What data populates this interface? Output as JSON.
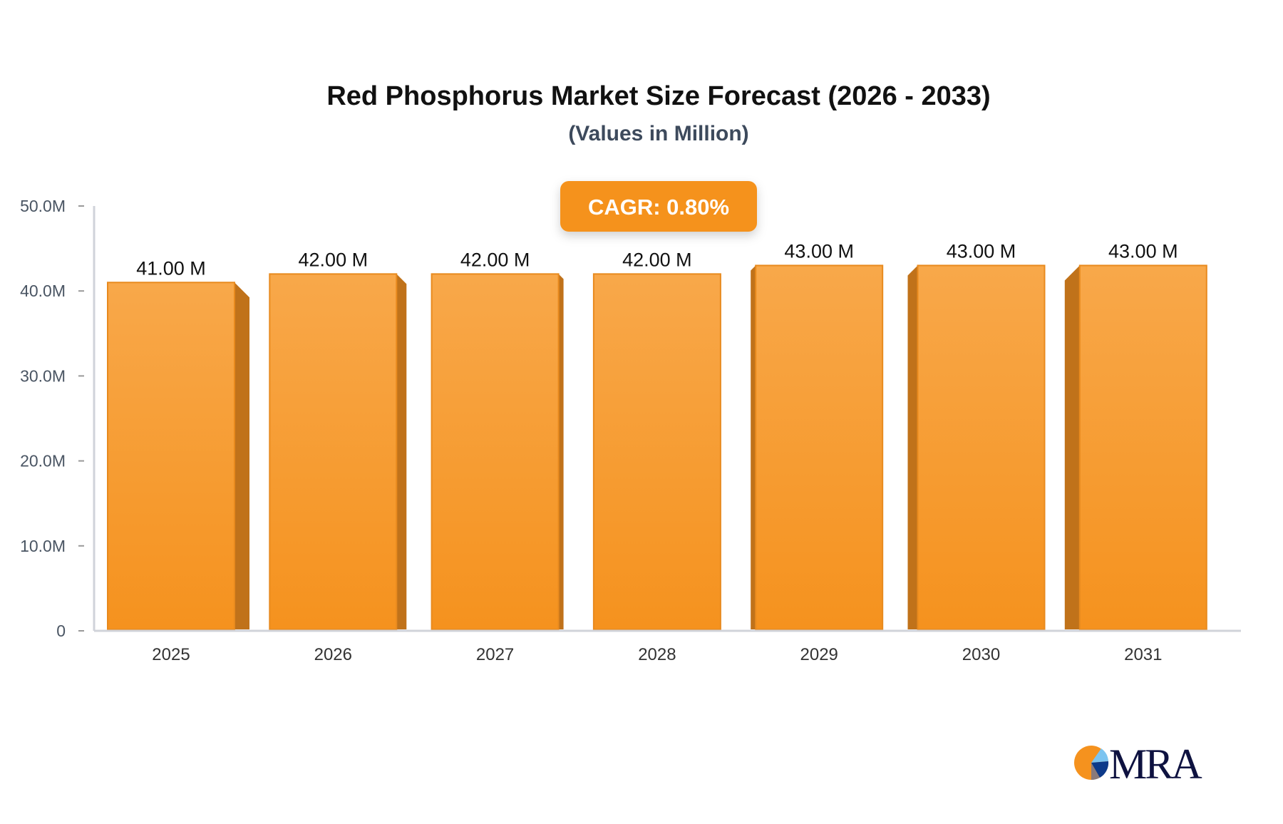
{
  "chart_data": {
    "type": "bar",
    "title": "Red Phosphorus Market Size Forecast (2026 - 2033)",
    "subtitle": "(Values in Million)",
    "categories": [
      "2025",
      "2026",
      "2027",
      "2028",
      "2029",
      "2030",
      "2031"
    ],
    "values": [
      41,
      42,
      42,
      42,
      43,
      43,
      43
    ],
    "data_labels": [
      "41.00 M",
      "42.00 M",
      "42.00 M",
      "42.00 M",
      "43.00 M",
      "43.00 M",
      "43.00 M"
    ],
    "ylim": [
      0,
      50
    ],
    "yticks": [
      0,
      10,
      20,
      30,
      40,
      50
    ],
    "ytick_labels": [
      "0",
      "10.0M",
      "20.0M",
      "30.0M",
      "40.0M",
      "50.0M"
    ],
    "xlabel": "",
    "ylabel": "",
    "grid": false,
    "annotation": "CAGR: 0.80%",
    "colors": {
      "bar_top": "#f8a84a",
      "bar_bottom": "#f5921e",
      "bar_side": "#c0721a",
      "badge": "#f5921e",
      "axis": "#d0d3da"
    }
  },
  "logo": {
    "text": "MRA"
  }
}
